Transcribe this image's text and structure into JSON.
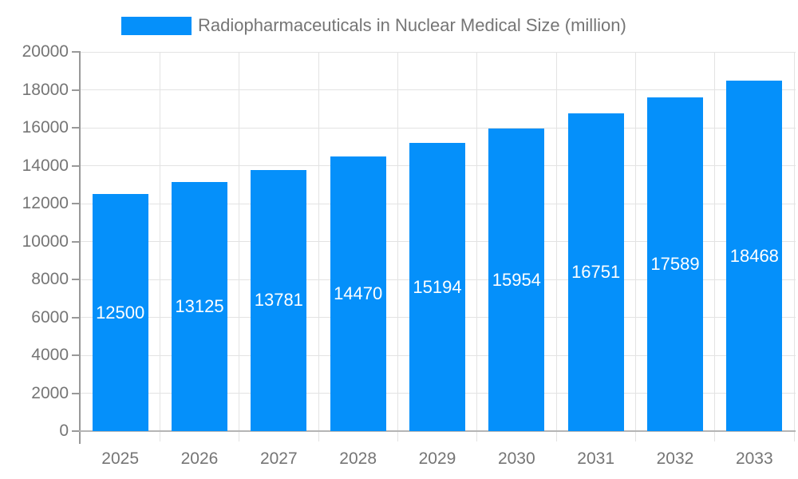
{
  "legend": {
    "label": "Radiopharmaceuticals in Nuclear Medical Size (million)"
  },
  "chart_data": {
    "type": "bar",
    "title": "Radiopharmaceuticals in Nuclear Medical Size (million)",
    "categories": [
      "2025",
      "2026",
      "2027",
      "2028",
      "2029",
      "2030",
      "2031",
      "2032",
      "2033"
    ],
    "values": [
      12500,
      13125,
      13781,
      14470,
      15194,
      15954,
      16751,
      17589,
      18468
    ],
    "xlabel": "",
    "ylabel": "",
    "ylim": [
      0,
      20000
    ],
    "yticks": [
      0,
      2000,
      4000,
      6000,
      8000,
      10000,
      12000,
      14000,
      16000,
      18000,
      20000
    ],
    "grid": true,
    "legend_position": "top",
    "value_labels": "inside-center-white",
    "bar_color": "#0590fa",
    "value_label_color": "#ffffff",
    "axis_text_color": "#757575",
    "gridline_color": "#e3e3e3",
    "axis_line_color": "#999999",
    "baseline_color": "#b5b5b5"
  }
}
